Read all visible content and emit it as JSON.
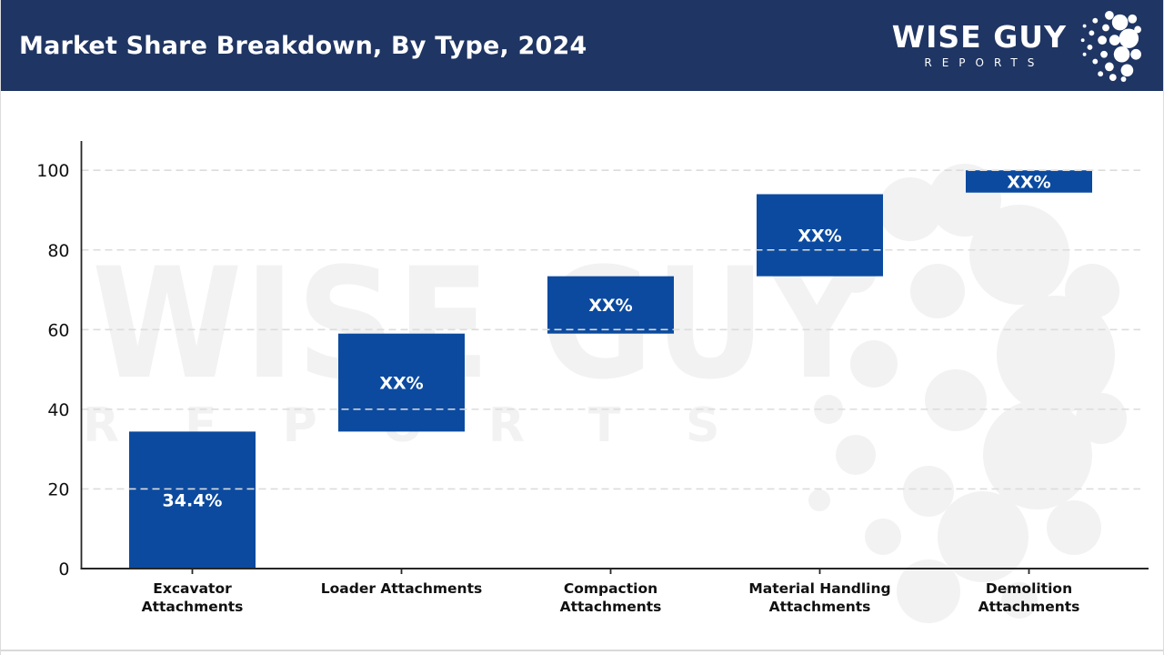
{
  "header": {
    "title": "Market Share Breakdown, By Type, 2024",
    "logo": {
      "line1": "WISE GUY",
      "line2": "REPORTS"
    }
  },
  "watermark": {
    "line1": "WISE GUY",
    "line2": "REPORTS"
  },
  "colors": {
    "header_bg": "#1f3563",
    "bar": "#0b4a9f",
    "bar_label": "#ffffff",
    "grid": "#dcdcdc",
    "axis": "#262626",
    "tick_text": "#111111",
    "watermark": "#f2f2f2"
  },
  "chart_data": {
    "type": "bar",
    "variant": "waterfall",
    "title": "Market Share Breakdown, By Type, 2024",
    "xlabel": "",
    "ylabel": "",
    "legend": "none",
    "grid": "horizontal dashed",
    "axis": {
      "ticks": [
        0,
        20,
        40,
        60,
        80,
        100
      ],
      "ylim": [
        0,
        100
      ]
    },
    "categories": [
      "Excavator Attachments",
      "Loader Attachments",
      "Compaction Attachments",
      "Material Handling Attachments",
      "Demolition Attachments"
    ],
    "bars": [
      {
        "category": "Excavator\nAttachments",
        "start": 0,
        "end": 34.4,
        "label": "34.4%"
      },
      {
        "category": "Loader Attachments",
        "start": 34.4,
        "end": 59,
        "label": "XX%"
      },
      {
        "category": "Compaction\nAttachments",
        "start": 59,
        "end": 73.4,
        "label": "XX%"
      },
      {
        "category": "Material Handling\nAttachments",
        "start": 73.4,
        "end": 94,
        "label": "XX%"
      },
      {
        "category": "Demolition\nAttachments",
        "start": 94.4,
        "end": 100,
        "label": "XX%"
      }
    ]
  }
}
